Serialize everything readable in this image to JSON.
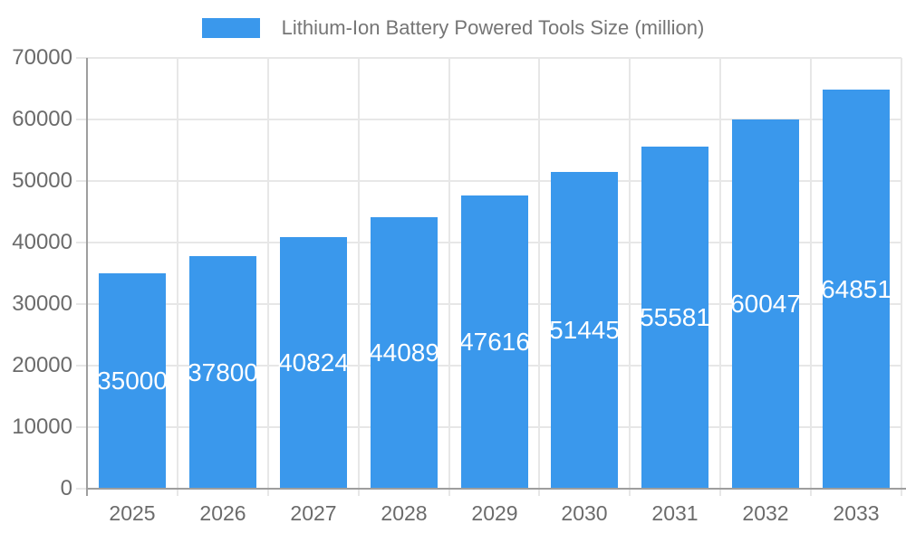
{
  "legend": {
    "label": "Lithium-Ion Battery Powered Tools Size (million)"
  },
  "chart_data": {
    "type": "bar",
    "title": "Lithium-Ion Battery Powered Tools Size (million)",
    "categories": [
      "2025",
      "2026",
      "2027",
      "2028",
      "2029",
      "2030",
      "2031",
      "2032",
      "2033"
    ],
    "values": [
      35000,
      37800,
      40824,
      44089,
      47616,
      51445,
      55581,
      60047,
      64851
    ],
    "series": [
      {
        "name": "Lithium-Ion Battery Powered Tools Size (million)",
        "values": [
          35000,
          37800,
          40824,
          44089,
          47616,
          51445,
          55581,
          60047,
          64851
        ]
      }
    ],
    "xlabel": "",
    "ylabel": "",
    "ylim": [
      0,
      70000
    ],
    "yticks": [
      0,
      10000,
      20000,
      30000,
      40000,
      50000,
      60000,
      70000
    ],
    "grid": true,
    "legend_position": "top",
    "value_label_position": "inside-center"
  },
  "colors": {
    "background": "#ffffff",
    "bar": "#3A98EC",
    "gridline": "#e7e7e7",
    "axis_line": "#9e9e9e",
    "tick_text": "#6b6b6b",
    "legend_text": "#757575",
    "value_text": "#ffffff"
  }
}
